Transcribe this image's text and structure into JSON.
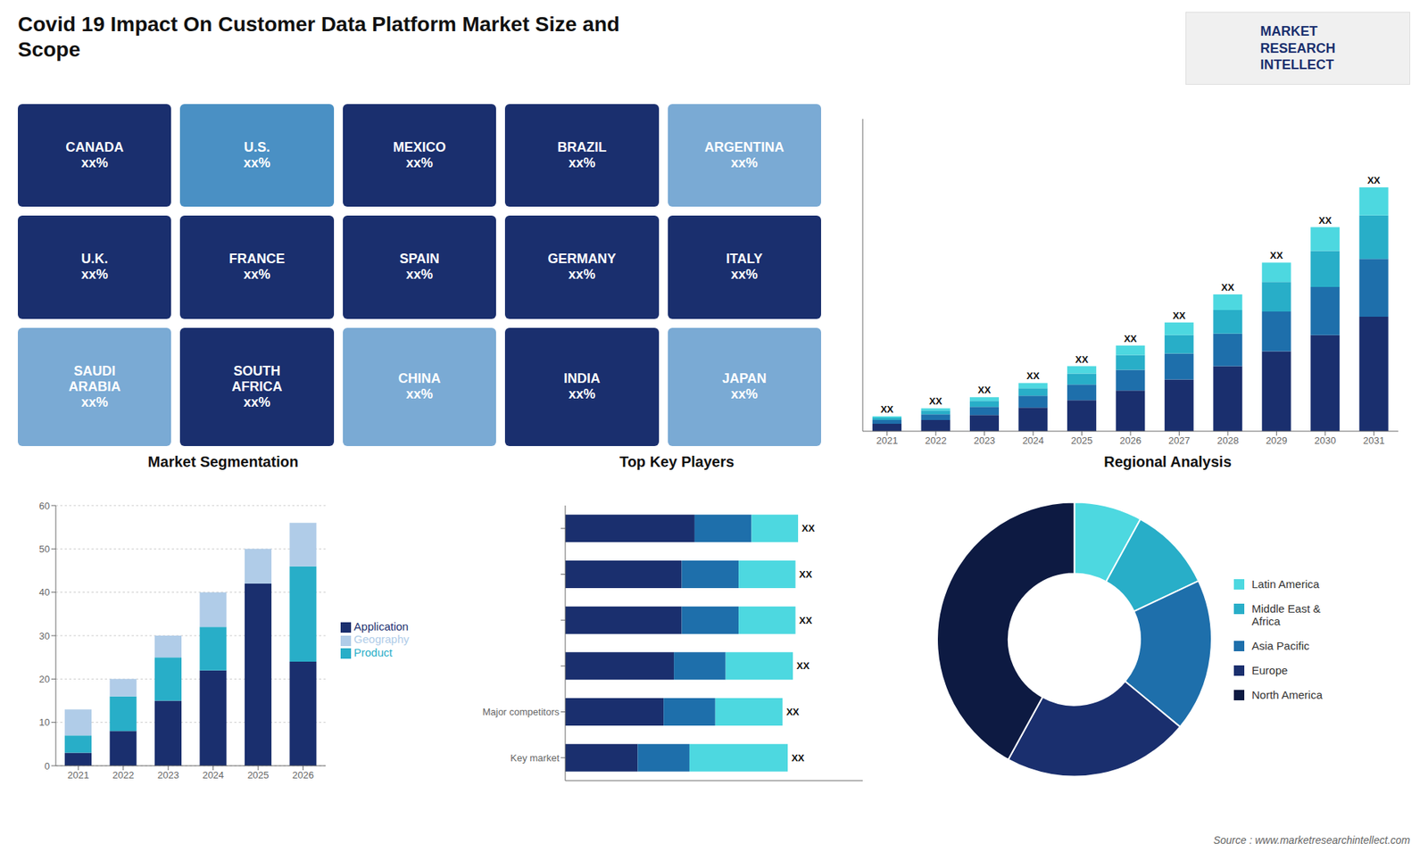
{
  "chart_data": [
    {
      "type": "map",
      "title": "Covid 19 Impact On Customer Data Platform Market Size and\nScope",
      "annotations": [
        "CANADA\nxx%",
        "U.S.\nxx%",
        "MEXICO\nxx%",
        "BRAZIL\nxx%",
        "ARGENTINA\nxx%",
        "U.K.\nxx%",
        "FRANCE\nxx%",
        "SPAIN\nxx%",
        "GERMANY\nxx%",
        "ITALY\nxx%",
        "SAUDI\nARABIA\nxx%",
        "SOUTH\nAFRICA\nxx%",
        "CHINA\nxx%",
        "INDIA\nxx%",
        "JAPAN\nxx%"
      ],
      "colors": [
        "#1a2f6e",
        "#4a90c4",
        "#1a2f6e",
        "#1a2f6e",
        "#7aaad4",
        "#1a2f6e",
        "#1a2f6e",
        "#1a2f6e",
        "#1a2f6e",
        "#1a2f6e",
        "#7aaad4",
        "#1a2f6e",
        "#7aaad4",
        "#1a2f6e",
        "#7aaad4"
      ]
    },
    {
      "type": "bar",
      "stacked": true,
      "grid": false,
      "tick_labels": "x",
      "annotations": [
        "MARKET\nRESEARCH\nINTELLECT"
      ],
      "categories": [
        "2021",
        "2022",
        "2023",
        "2024",
        "2025",
        "2026",
        "2027",
        "2028",
        "2029",
        "2030",
        "2031"
      ],
      "series": [
        {
          "color": "#1a2f6e",
          "values": [
            1.0,
            1.5,
            2.2,
            3.2,
            4.2,
            5.5,
            7.0,
            8.8,
            10.8,
            13.0,
            15.5
          ]
        },
        {
          "color": "#1e6fab",
          "values": [
            0.5,
            0.8,
            1.1,
            1.6,
            2.1,
            2.8,
            3.5,
            4.4,
            5.4,
            6.5,
            7.8
          ]
        },
        {
          "color": "#28aec8",
          "values": [
            0.3,
            0.5,
            0.8,
            1.0,
            1.5,
            2.0,
            2.5,
            3.2,
            4.0,
            4.9,
            5.9
          ]
        },
        {
          "color": "#4dd8e0",
          "values": [
            0.2,
            0.3,
            0.5,
            0.7,
            1.0,
            1.3,
            1.7,
            2.1,
            2.6,
            3.2,
            3.8
          ],
          "value_labels": [
            "XX",
            "XX",
            "XX",
            "XX",
            "XX",
            "XX",
            "XX",
            "XX",
            "XX",
            "XX",
            "XX"
          ]
        }
      ],
      "ylim": [
        0,
        42.24
      ]
    },
    {
      "type": "bar",
      "title": "Market Segmentation",
      "stacked": true,
      "grid": true,
      "legend": "right",
      "categories": [
        "2021",
        "2022",
        "2023",
        "2024",
        "2025",
        "2026"
      ],
      "series": [
        {
          "name": "Application",
          "color": "#1a2f6e",
          "values": [
            3,
            8,
            15,
            22,
            42,
            24
          ]
        },
        {
          "name": "Product",
          "color": "#28aec8",
          "values": [
            4,
            8,
            10,
            10,
            0,
            22
          ]
        },
        {
          "name": "Geography",
          "color": "#b0cce8",
          "values": [
            6,
            4,
            5,
            8,
            8,
            10
          ]
        }
      ],
      "ylim": [
        0,
        60
      ],
      "yticks": [
        0,
        10,
        20,
        30,
        40,
        50,
        60
      ]
    },
    {
      "type": "bar",
      "title": "Top Key Players",
      "orientation": "horizontal",
      "stacked": true,
      "grid": false,
      "tick_labels": "y",
      "categories": [
        null,
        null,
        null,
        null,
        "Major competitors",
        "Key market"
      ],
      "series": [
        {
          "color": "#1a2f6e",
          "values": [
            0.5,
            0.45,
            0.45,
            0.42,
            0.38,
            0.28
          ]
        },
        {
          "color": "#1e6fab",
          "values": [
            0.22,
            0.22,
            0.22,
            0.2,
            0.2,
            0.2
          ]
        },
        {
          "color": "#4dd8e0",
          "values": [
            0.18,
            0.22,
            0.22,
            0.26,
            0.26,
            0.38
          ],
          "value_labels": [
            "XX",
            "XX",
            "XX",
            "XX",
            "XX",
            "XX"
          ]
        }
      ],
      "xlim": [
        0,
        1.15
      ]
    },
    {
      "type": "pie",
      "title": "Regional Analysis",
      "legend": "right",
      "categories": [
        "Latin America",
        "Middle East &\nAfrica",
        "Asia Pacific",
        "Europe",
        "North America"
      ],
      "values": [
        8,
        10,
        18,
        22,
        42
      ],
      "colors": [
        "#4dd8e0",
        "#28aec8",
        "#1e6fab",
        "#1a2f6e",
        "#0d1a42"
      ],
      "annotations": [
        "Source : www.marketresearchintellect.com"
      ]
    }
  ]
}
